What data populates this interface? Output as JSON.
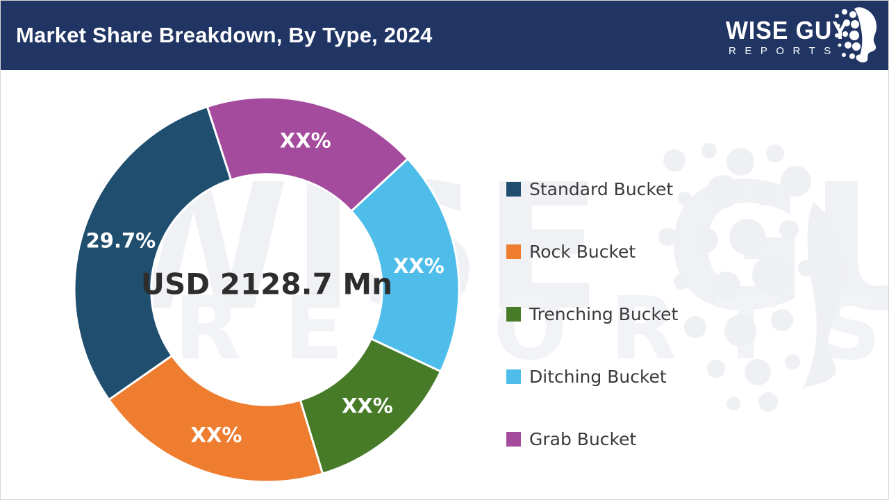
{
  "header": {
    "title": "Market Share Breakdown, By Type, 2024",
    "logo": {
      "line1": "WISE GUY",
      "line2": "REPORTS"
    }
  },
  "watermark": {
    "line1": "WISE GUY",
    "line2": "REPORTS"
  },
  "center_value": "USD 2128.7 Mn",
  "colors": {
    "header_bg": "#213564",
    "canvas_bg": "#ffffff",
    "slice_label_text": "#ffffff",
    "center_text": "#2d2d2d",
    "legend_text": "#3a3a3a"
  },
  "chart_data": {
    "type": "pie",
    "subtype": "donut",
    "title": "Market Share Breakdown, By Type, 2024",
    "center_label": "USD 2128.7 Mn",
    "start_angle_deg": 108,
    "direction": "counterclockwise",
    "inner_radius_ratio": 0.6,
    "legend_position": "right",
    "grid": false,
    "series": [
      {
        "name": "Standard Bucket",
        "value_pct": 29.7,
        "label": "29.7%",
        "color": "#1F4E6F"
      },
      {
        "name": "Rock Bucket",
        "value_pct": 20.0,
        "label": "XX%",
        "color": "#EE7D30"
      },
      {
        "name": "Trenching Bucket",
        "value_pct": 13.3,
        "label": "XX%",
        "color": "#477B28"
      },
      {
        "name": "Ditching Bucket",
        "value_pct": 18.9,
        "label": "XX%",
        "color": "#4EBDE9"
      },
      {
        "name": "Grab Bucket",
        "value_pct": 18.1,
        "label": "XX%",
        "color": "#A44B9E"
      }
    ]
  }
}
